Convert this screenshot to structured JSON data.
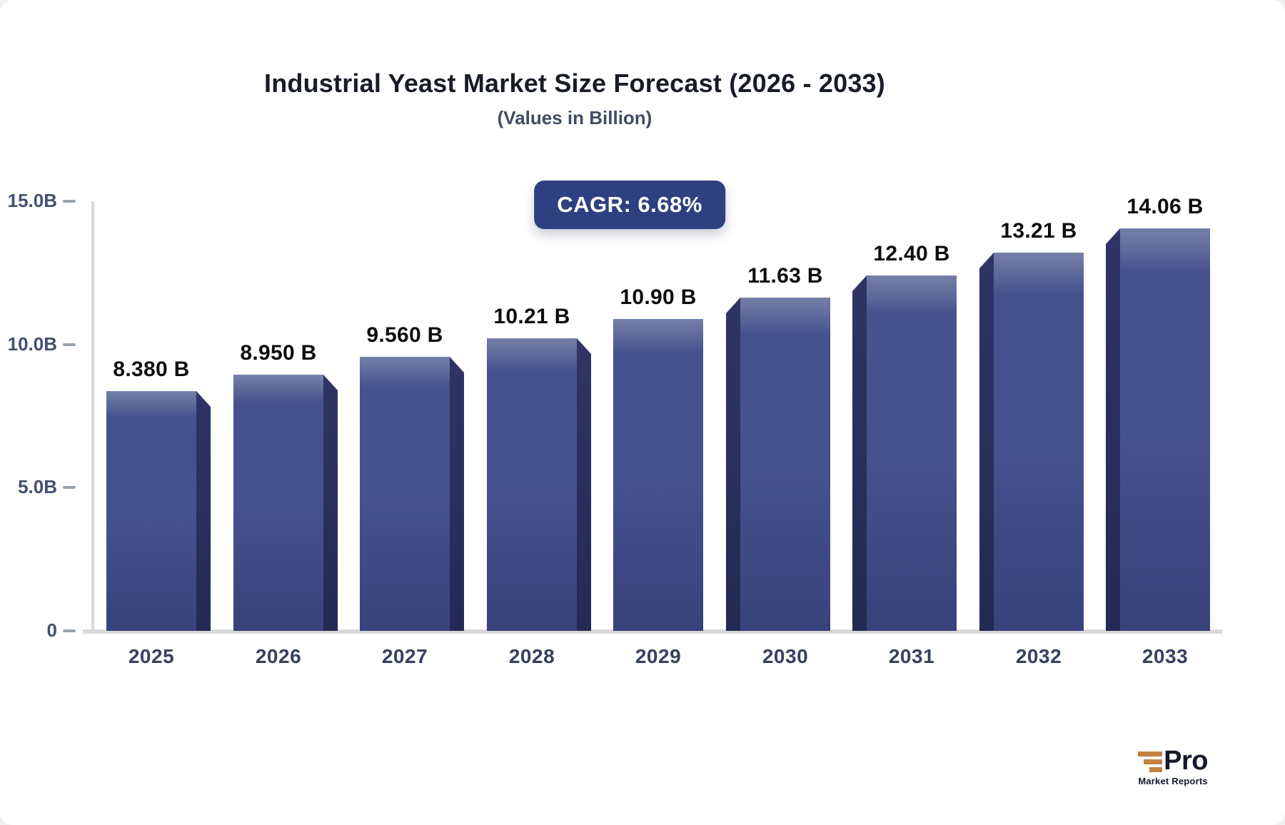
{
  "page": {
    "background": "#f0f0f0",
    "card_background": "#ffffff"
  },
  "header": {
    "title": "Industrial Yeast Market Size Forecast (2026 - 2033)",
    "subtitle": "(Values in Billion)",
    "cagr_badge": "CAGR: 6.68%"
  },
  "chart_data": {
    "type": "bar",
    "title": "Industrial Yeast Market Size Forecast (2026 - 2033)",
    "subtitle": "(Values in Billion)",
    "cagr_percent": 6.68,
    "unit": "Billion",
    "categories": [
      "2025",
      "2026",
      "2027",
      "2028",
      "2029",
      "2030",
      "2031",
      "2032",
      "2033"
    ],
    "values": [
      8.38,
      8.95,
      9.56,
      10.21,
      10.9,
      11.63,
      12.4,
      13.21,
      14.06
    ],
    "value_labels": [
      "8.380 B",
      "8.950 B",
      "9.560 B",
      "10.21 B",
      "10.90 B",
      "11.63 B",
      "12.40 B",
      "13.21 B",
      "14.06 B"
    ],
    "yticks": [
      {
        "label": "15.0B",
        "value": 15
      },
      {
        "label": "10.0B",
        "value": 10
      },
      {
        "label": "5.0B",
        "value": 5
      },
      {
        "label": "0",
        "value": 0
      }
    ],
    "ylim": [
      0,
      15
    ],
    "grid": false,
    "legend": false,
    "colors": {
      "bar_face_top": "#7580a8",
      "bar_face_mid": "#46528e",
      "bar_face_bottom": "#38427b",
      "bar_side": "#2a3161",
      "badge_background": "#2e4080",
      "axis_line": "#d9d9d9",
      "tick_text": "#425071",
      "category_text": "#37415f",
      "value_text": "#0d0d0d"
    }
  },
  "footer": {
    "logo_text": "Pro",
    "logo_subtext": "Market Reports",
    "logo_accent": "#c6803f"
  }
}
